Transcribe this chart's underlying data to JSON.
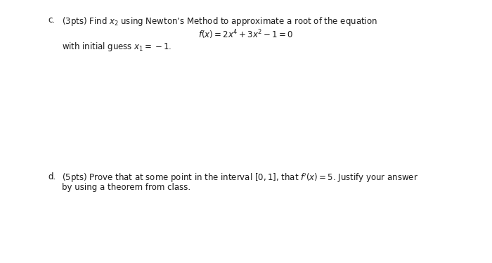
{
  "background_color": "#ffffff",
  "figsize": [
    7.0,
    3.74
  ],
  "dpi": 100,
  "part_c_label": "c.",
  "part_c_line1": "(3pts) Find $x_2$ using Newton’s Method to approximate a root of the equation",
  "part_c_equation": "$f(x) = 2x^4 + 3x^2 - 1 = 0$",
  "part_c_line3": "with initial guess $x_1 = -1$.",
  "part_d_label": "d.",
  "part_d_line1": "(5pts) Prove that at some point in the interval $[0,1]$, that $f'(x) = 5$. Justify your answer",
  "part_d_line2": "by using a theorem from class.",
  "font_size": 8.5,
  "text_color": "#1a1a1a"
}
